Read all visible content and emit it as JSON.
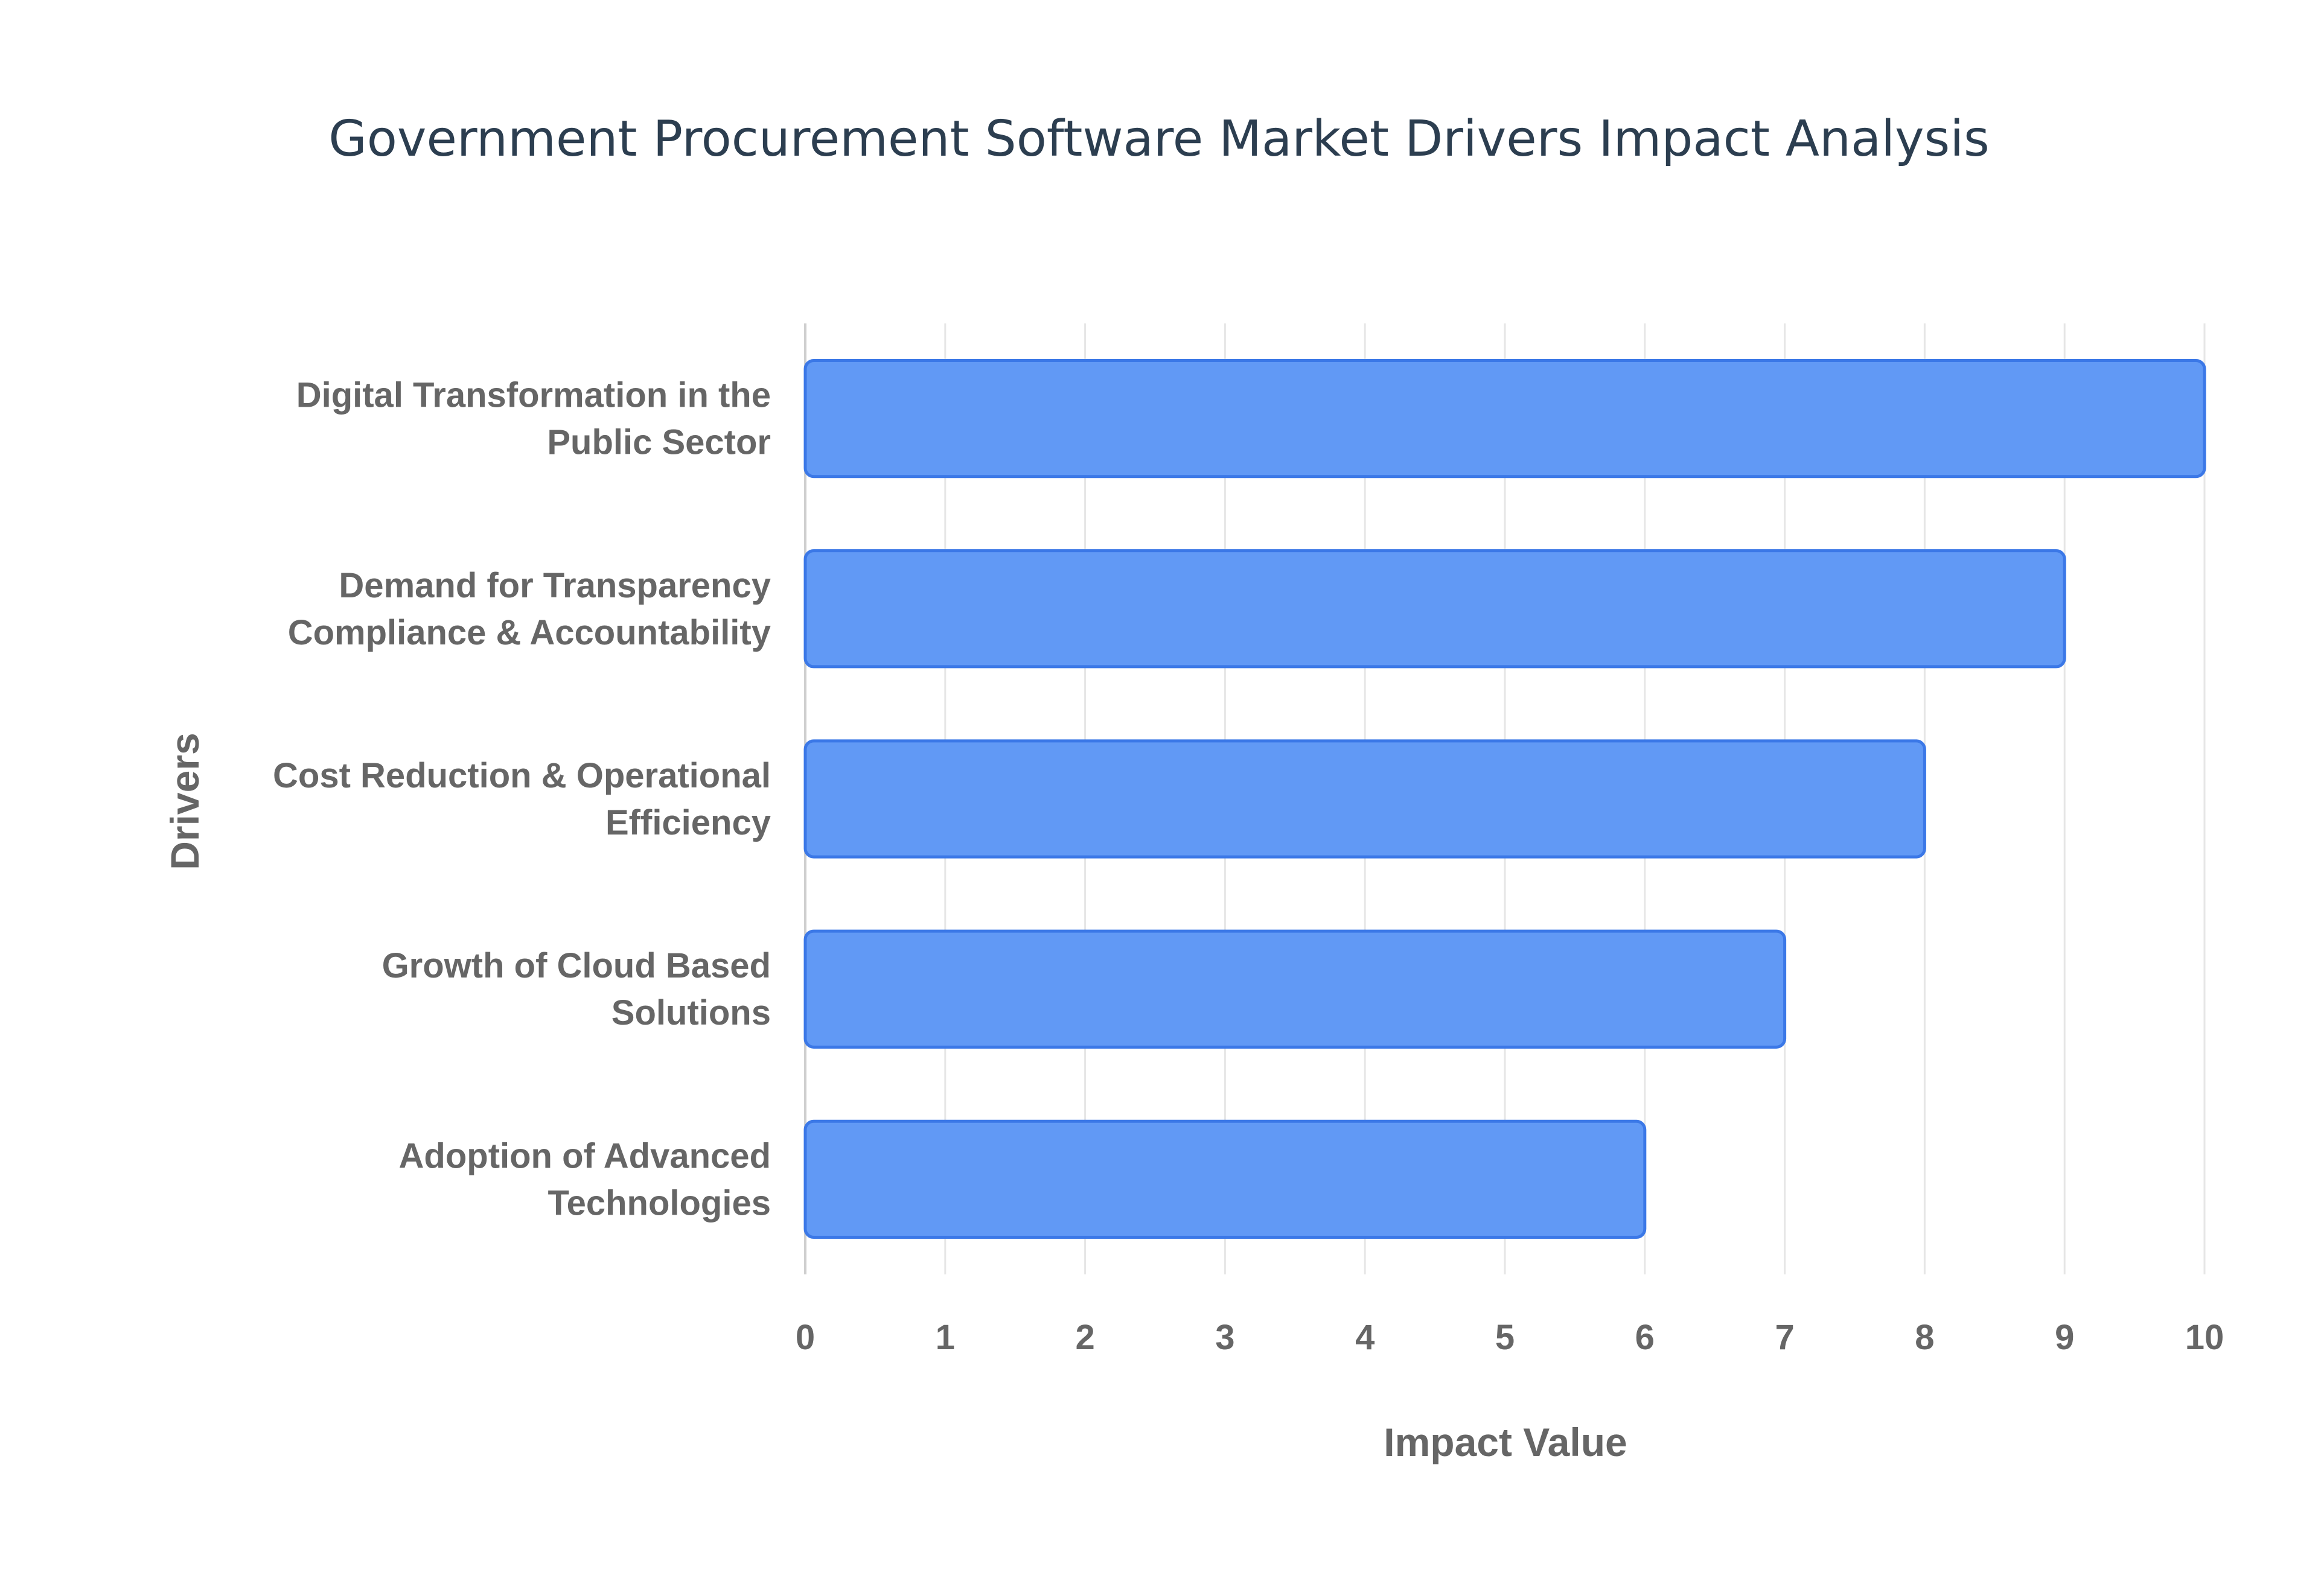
{
  "chart_data": {
    "type": "bar",
    "orientation": "horizontal",
    "title": "Government Procurement Software Market Drivers Impact Analysis",
    "xlabel": "Impact Value",
    "ylabel": "Drivers",
    "categories": [
      [
        "Digital Transformation in the",
        "Public Sector"
      ],
      [
        "Demand for Transparency",
        "Compliance & Accountability"
      ],
      [
        "Cost Reduction & Operational",
        "Efficiency"
      ],
      [
        "Growth of Cloud Based",
        "Solutions"
      ],
      [
        "Adoption of Advanced",
        "Technologies"
      ]
    ],
    "values": [
      10,
      9,
      8,
      7,
      6
    ],
    "xlim": [
      0,
      10
    ],
    "xticks": [
      0,
      1,
      2,
      3,
      4,
      5,
      6,
      7,
      8,
      9,
      10
    ],
    "grid": true,
    "legend": "none",
    "colors": {
      "bar_fill": "#6199f5",
      "bar_stroke": "#3b78e7",
      "grid": "#e6e6e6",
      "title": "#2c3e50",
      "labels": "#666666"
    }
  }
}
